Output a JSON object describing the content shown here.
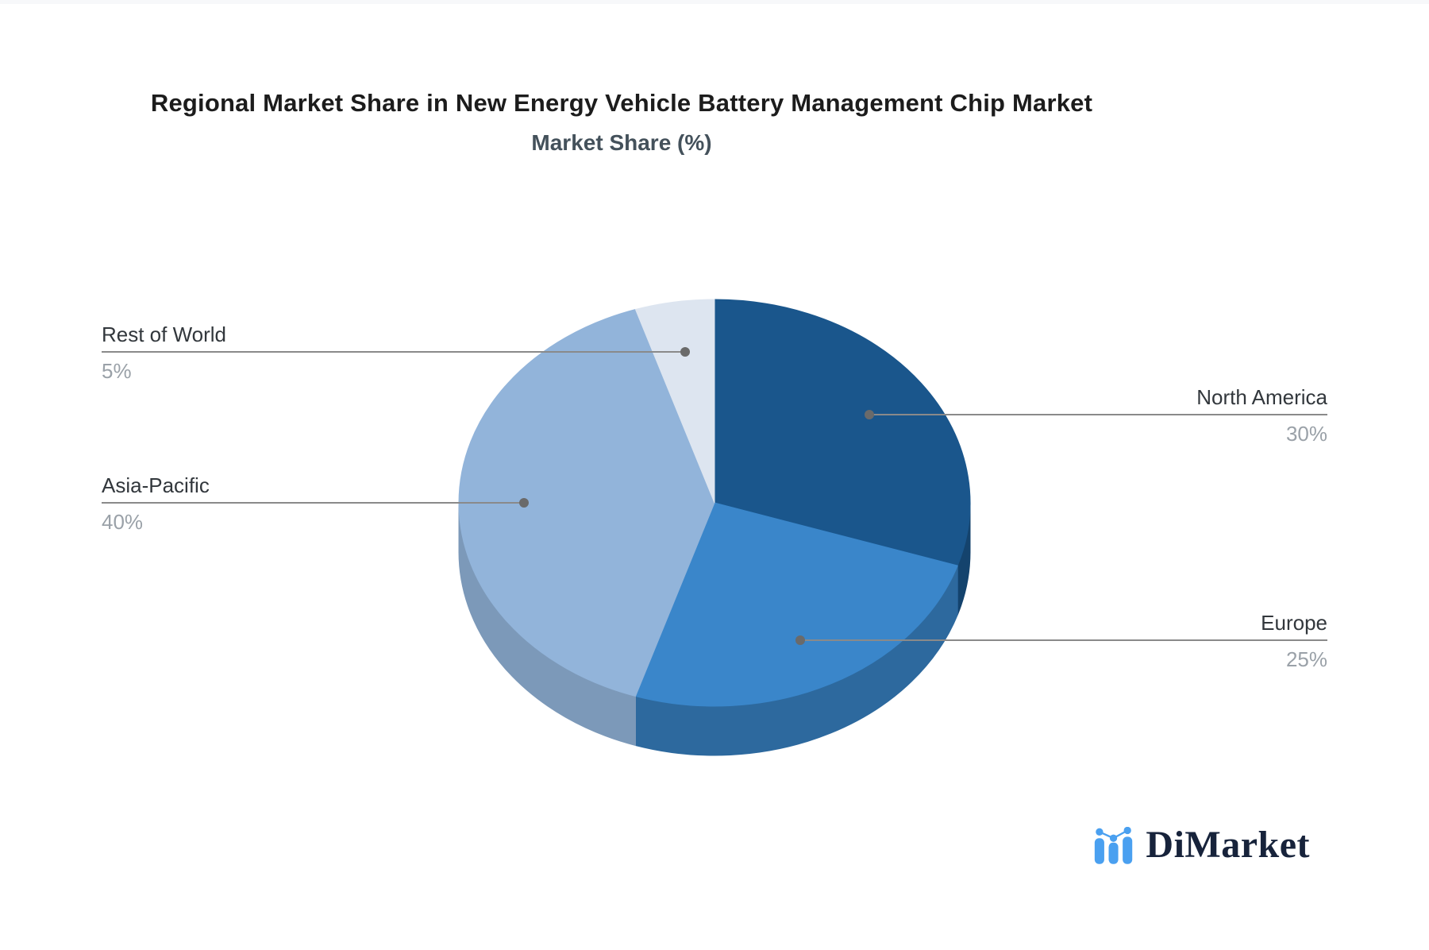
{
  "chart_data": {
    "type": "pie",
    "style": "3d",
    "direction": "clockwise",
    "start_position": "12-oclock",
    "title": "Regional Market Share in New Energy Vehicle Battery Management Chip Market",
    "subtitle": "Market Share (%)",
    "unit": "%",
    "legend": "none",
    "label_style": "leader-line callouts, name above line and percent value below",
    "categories": [
      "North America",
      "Europe",
      "Asia-Pacific",
      "Rest of World"
    ],
    "values": [
      30,
      25,
      40,
      5
    ],
    "slices": [
      {
        "label": "North America",
        "value": 30,
        "display_value": "30%",
        "color": "#1A568C",
        "side_color": "#14436D",
        "callout_side": "right"
      },
      {
        "label": "Europe",
        "value": 25,
        "display_value": "25%",
        "color": "#3A86CA",
        "side_color": "#2D699E",
        "callout_side": "right"
      },
      {
        "label": "Asia-Pacific",
        "value": 40,
        "display_value": "40%",
        "color": "#92B4DA",
        "side_color": "#7C99B9",
        "callout_side": "left"
      },
      {
        "label": "Rest of World",
        "value": 5,
        "display_value": "5%",
        "color": "#DDE5F0",
        "side_color": "#BCC8D8",
        "callout_side": "left"
      }
    ]
  },
  "callout_colors": {
    "line": "#8a8a8a",
    "dot": "#6a6a6a",
    "name_text": "#32373c",
    "value_text": "#9aa1a8"
  },
  "branding": {
    "name": "DiMarket",
    "icon": "bar-line-chart-icon",
    "text_color": "#17233B",
    "icon_color": "#4AA0F0"
  }
}
